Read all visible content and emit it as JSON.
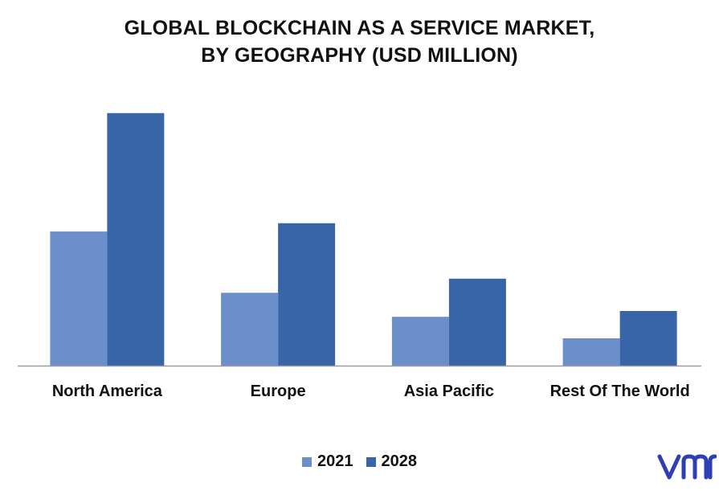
{
  "title_line1": "GLOBAL BLOCKCHAIN AS A SERVICE MARKET,",
  "title_line2": "BY GEOGRAPHY (USD MILLION)",
  "colors": {
    "series_2021": "#6a8fc9",
    "series_2028": "#3765a8",
    "axis": "#9b9b9b",
    "logo": "#2e3fb5"
  },
  "logo": {
    "text": "vmr",
    "icon": "vmr-logo"
  },
  "chart_data": {
    "type": "bar",
    "title": "GLOBAL BLOCKCHAIN AS A SERVICE MARKET, BY GEOGRAPHY (USD MILLION)",
    "categories": [
      "North America",
      "Europe",
      "Asia Pacific",
      "Rest Of The World"
    ],
    "series": [
      {
        "name": "2021",
        "values": [
          162,
          88,
          59,
          33
        ]
      },
      {
        "name": "2028",
        "values": [
          305,
          172,
          105,
          66
        ]
      }
    ],
    "xlabel": "",
    "ylabel": "",
    "ylim": [
      0,
      330
    ],
    "grid": false,
    "value_axis_shown": false,
    "legend_position": "bottom"
  }
}
